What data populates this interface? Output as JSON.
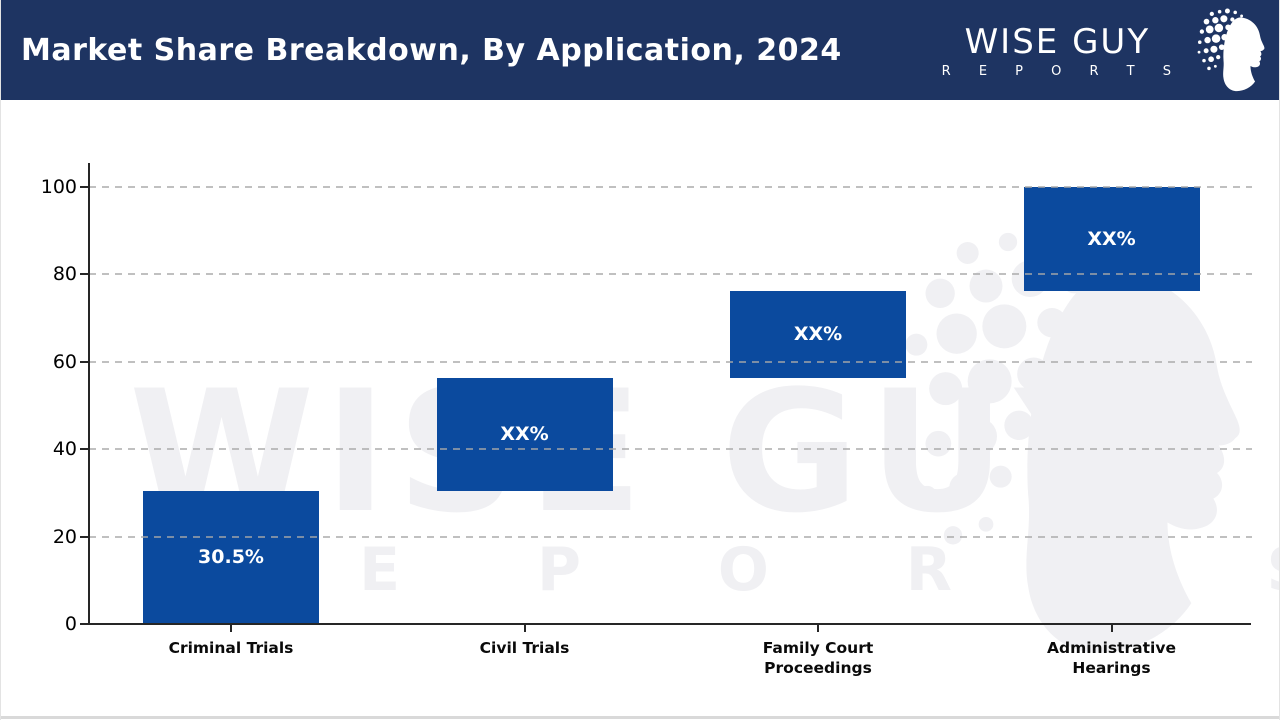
{
  "header": {
    "title": "Market Share Breakdown, By Application, 2024",
    "bg_color": "#1e3462",
    "logo": {
      "line1": "WISE GUY",
      "line2": "R E P O R T S"
    }
  },
  "watermark": {
    "line1": "WISE GUY",
    "line2": "R E P O R T S"
  },
  "chart_data": {
    "type": "bar",
    "subtype": "waterfall",
    "title": "Market Share Breakdown, By Application, 2024",
    "categories": [
      "Criminal Trials",
      "Civil Trials",
      "Family Court Proceedings",
      "Administrative Hearings"
    ],
    "segments": [
      {
        "label": "Criminal Trials",
        "start": 0,
        "end": 30.5,
        "value": 30.5,
        "value_label": "30.5%"
      },
      {
        "label": "Civil Trials",
        "start": 30.5,
        "end": 56.3,
        "value": 25.8,
        "value_label": "XX%"
      },
      {
        "label": "Family Court Proceedings",
        "start": 56.3,
        "end": 76.1,
        "value": 19.8,
        "value_label": "XX%"
      },
      {
        "label": "Administrative Hearings",
        "start": 76.1,
        "end": 100,
        "value": 23.9,
        "value_label": "XX%"
      }
    ],
    "y_ticks": [
      0,
      20,
      40,
      60,
      80,
      100
    ],
    "ylim": [
      0,
      100
    ],
    "xlabel": "",
    "ylabel": "",
    "grid": "horizontal-dashed",
    "legend": "none",
    "bar_color": "#0b4a9e",
    "bar_label_color": "#ffffff"
  }
}
